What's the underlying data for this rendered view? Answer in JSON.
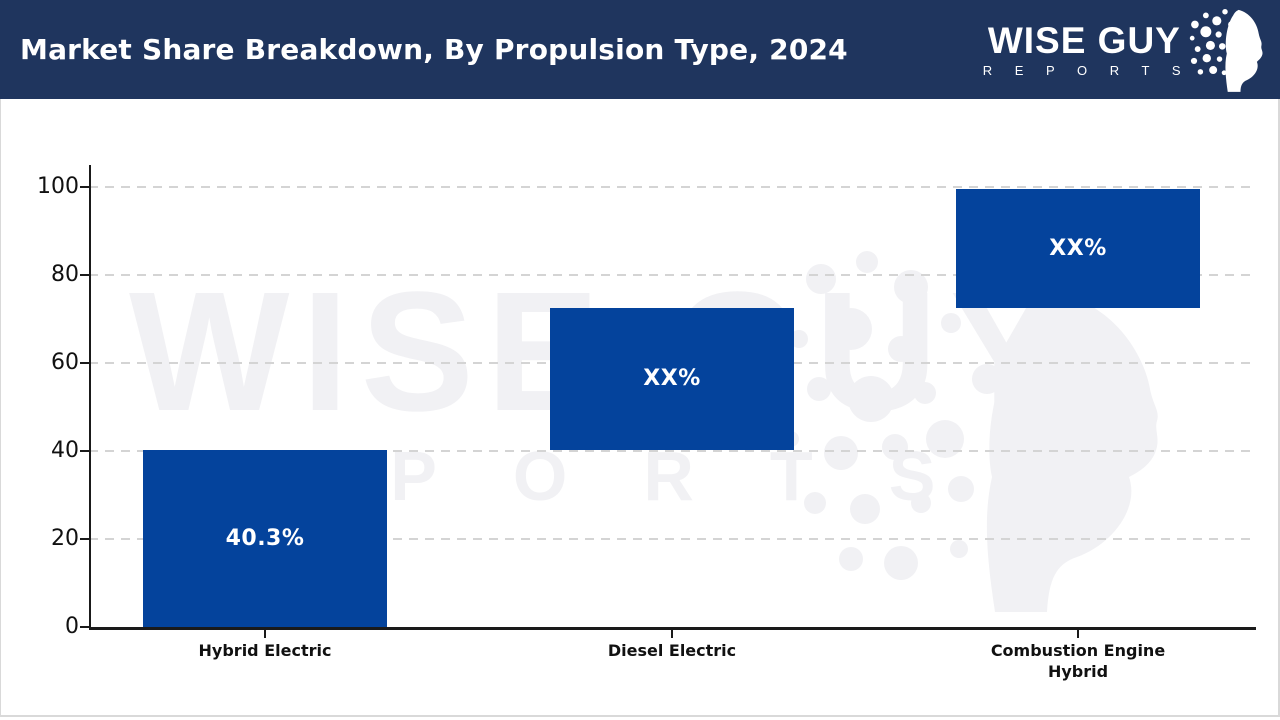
{
  "header": {
    "title": "Market Share Breakdown, By Propulsion Type, 2024",
    "logo": {
      "line1": "WISE GUY",
      "line2": "R E P O R T S"
    }
  },
  "watermark": {
    "line1": "WISE GUY",
    "line2": "REPORTS"
  },
  "chart_data": {
    "type": "bar",
    "subtype": "waterfall",
    "title": "Market Share Breakdown, By Propulsion Type, 2024",
    "categories": [
      "Hybrid Electric",
      "Diesel Electric",
      "Combustion Engine Hybrid"
    ],
    "segments": [
      {
        "category": "Hybrid Electric",
        "start": 0,
        "end": 40.3,
        "label": "40.3%"
      },
      {
        "category": "Diesel Electric",
        "start": 40.3,
        "end": 72.6,
        "label": "XX%"
      },
      {
        "category": "Combustion Engine Hybrid",
        "start": 72.6,
        "end": 99.5,
        "label": "XX%"
      }
    ],
    "yticks": [
      0,
      20,
      40,
      60,
      80,
      100
    ],
    "ylim": [
      0,
      100
    ],
    "xlabel": "",
    "ylabel": "",
    "grid": "dashed-horizontal",
    "legend": "none",
    "colors": {
      "bar": "#04439c",
      "header_bg": "#1f355e",
      "axis": "#1a1a1a",
      "gridline": "#d4d4d4",
      "watermark": "#f1f1f4",
      "bar_label_text": "#ffffff",
      "title_text": "#ffffff"
    }
  }
}
